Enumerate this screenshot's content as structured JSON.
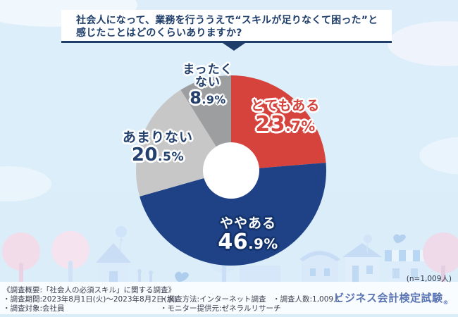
{
  "header": {
    "title_line1": "社会人になって、業務を行ううえで“スキルが足りなくて困った”と",
    "title_line2": "感じたことはどのくらいありますか?"
  },
  "chart_data": {
    "type": "pie",
    "title": "社会人になって、業務を行ううえで“スキルが足りなくて困った”と感じたことはどのくらいありますか?",
    "categories": [
      "とてもある",
      "ややある",
      "あまりない",
      "まったくない"
    ],
    "values": [
      23.7,
      46.9,
      20.5,
      8.9
    ],
    "unit": "%",
    "colors": [
      "#d6433d",
      "#1f4287",
      "#c7c7c7",
      "#9d9ea0"
    ],
    "donut_hole_color": "#ffffff",
    "start_angle_deg": 0,
    "direction": "clockwise",
    "legend_position": "on-slices",
    "sample_note": "(n=1,009人)"
  },
  "footer": {
    "overview": "《調査概要:「社会人の必須スキル」に関する調査》",
    "period": "・調査期間:2023年8月1日(火)〜2023年8月2日(水)",
    "target": "・調査対象:会社員",
    "method": "・調査方法:インターネット調査",
    "monitor": "・モニター提供元:ゼネラルリサーチ",
    "respondents": "・調査人数:1,009人"
  },
  "brand": {
    "logo_text": "ビジネス会計検定試験",
    "logo_mark": "®",
    "logo_color": "#5a74b3"
  },
  "palette": {
    "sky": "#ddeefa",
    "title_navy": "#1f3e6a",
    "label_navy": "#24416e"
  }
}
